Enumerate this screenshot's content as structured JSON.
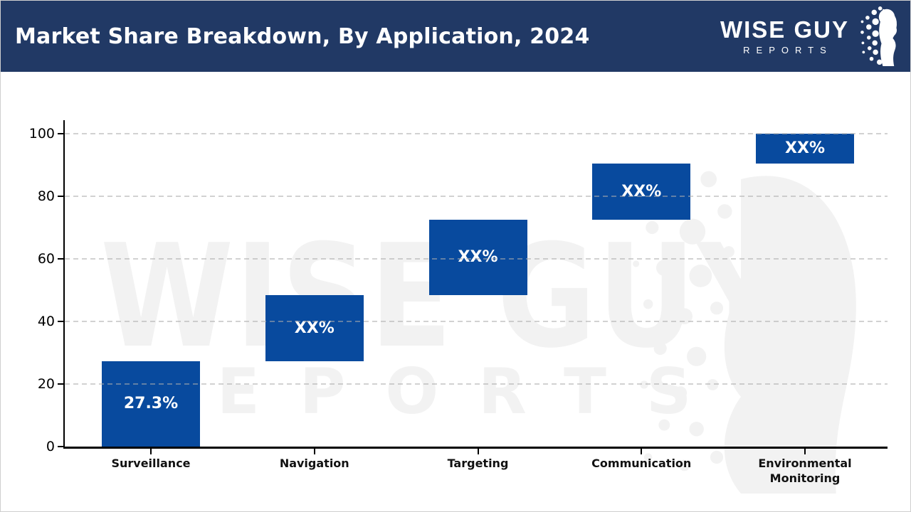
{
  "header": {
    "title": "Market Share Breakdown, By Application, 2024",
    "background_color": "#213965",
    "logo": {
      "name": "WISE GUY",
      "sub": "REPORTS"
    }
  },
  "watermark": {
    "line1": "WISE GUY",
    "line2": "REPORTS"
  },
  "chart_data": {
    "type": "bar",
    "variant": "waterfall",
    "title": "Market Share Breakdown, By Application, 2024",
    "categories": [
      "Surveillance",
      "Navigation",
      "Targeting",
      "Communication",
      "Environmental Monitoring"
    ],
    "segments": [
      {
        "category": "Surveillance",
        "start": 0,
        "end": 27.3,
        "label": "27.3%"
      },
      {
        "category": "Navigation",
        "start": 27.3,
        "end": 48.5,
        "label": "XX%"
      },
      {
        "category": "Targeting",
        "start": 48.5,
        "end": 72.5,
        "label": "XX%"
      },
      {
        "category": "Communication",
        "start": 72.5,
        "end": 90.5,
        "label": "XX%"
      },
      {
        "category": "Environmental Monitoring",
        "start": 90.5,
        "end": 100,
        "label": "XX%"
      }
    ],
    "yticks": [
      0,
      20,
      40,
      60,
      80,
      100
    ],
    "ylim": [
      0,
      105
    ],
    "xlabel": "",
    "ylabel": "",
    "bar_color": "#084a9e",
    "bar_label_color": "#ffffff",
    "grid": {
      "axis": "y",
      "style": "dashed",
      "color": "#d9d9d9"
    },
    "legend": "none"
  }
}
